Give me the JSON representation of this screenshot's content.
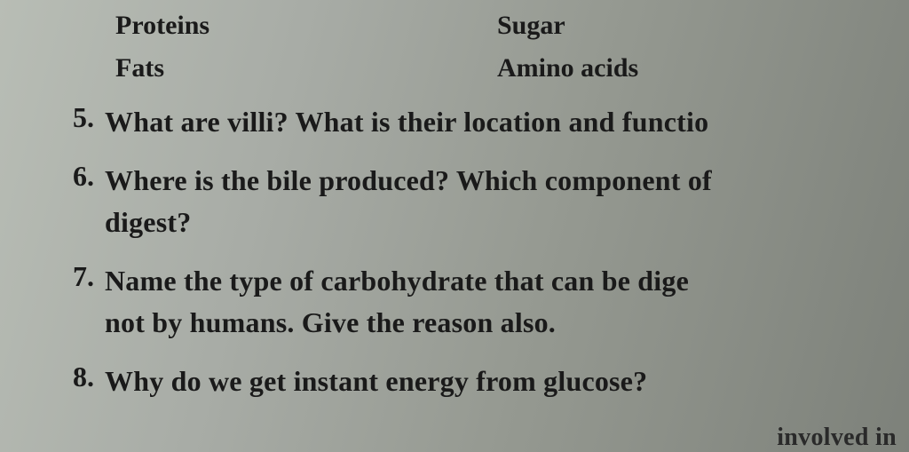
{
  "pair1": {
    "left": "Proteins",
    "right": "Sugar"
  },
  "pair2": {
    "left": "Fats",
    "right": "Amino acids"
  },
  "q5": {
    "num": "5.",
    "text": "What are villi? What is their location and functio"
  },
  "q6": {
    "num": "6.",
    "text": "Where is the bile produced? Which component of\ndigest?"
  },
  "q7": {
    "num": "7.",
    "text": "Name the type of carbohydrate that can be dige\nnot by humans. Give the reason also."
  },
  "q8": {
    "num": "8.",
    "text": "Why do we get instant energy from glucose?"
  },
  "bottom": "involved in"
}
